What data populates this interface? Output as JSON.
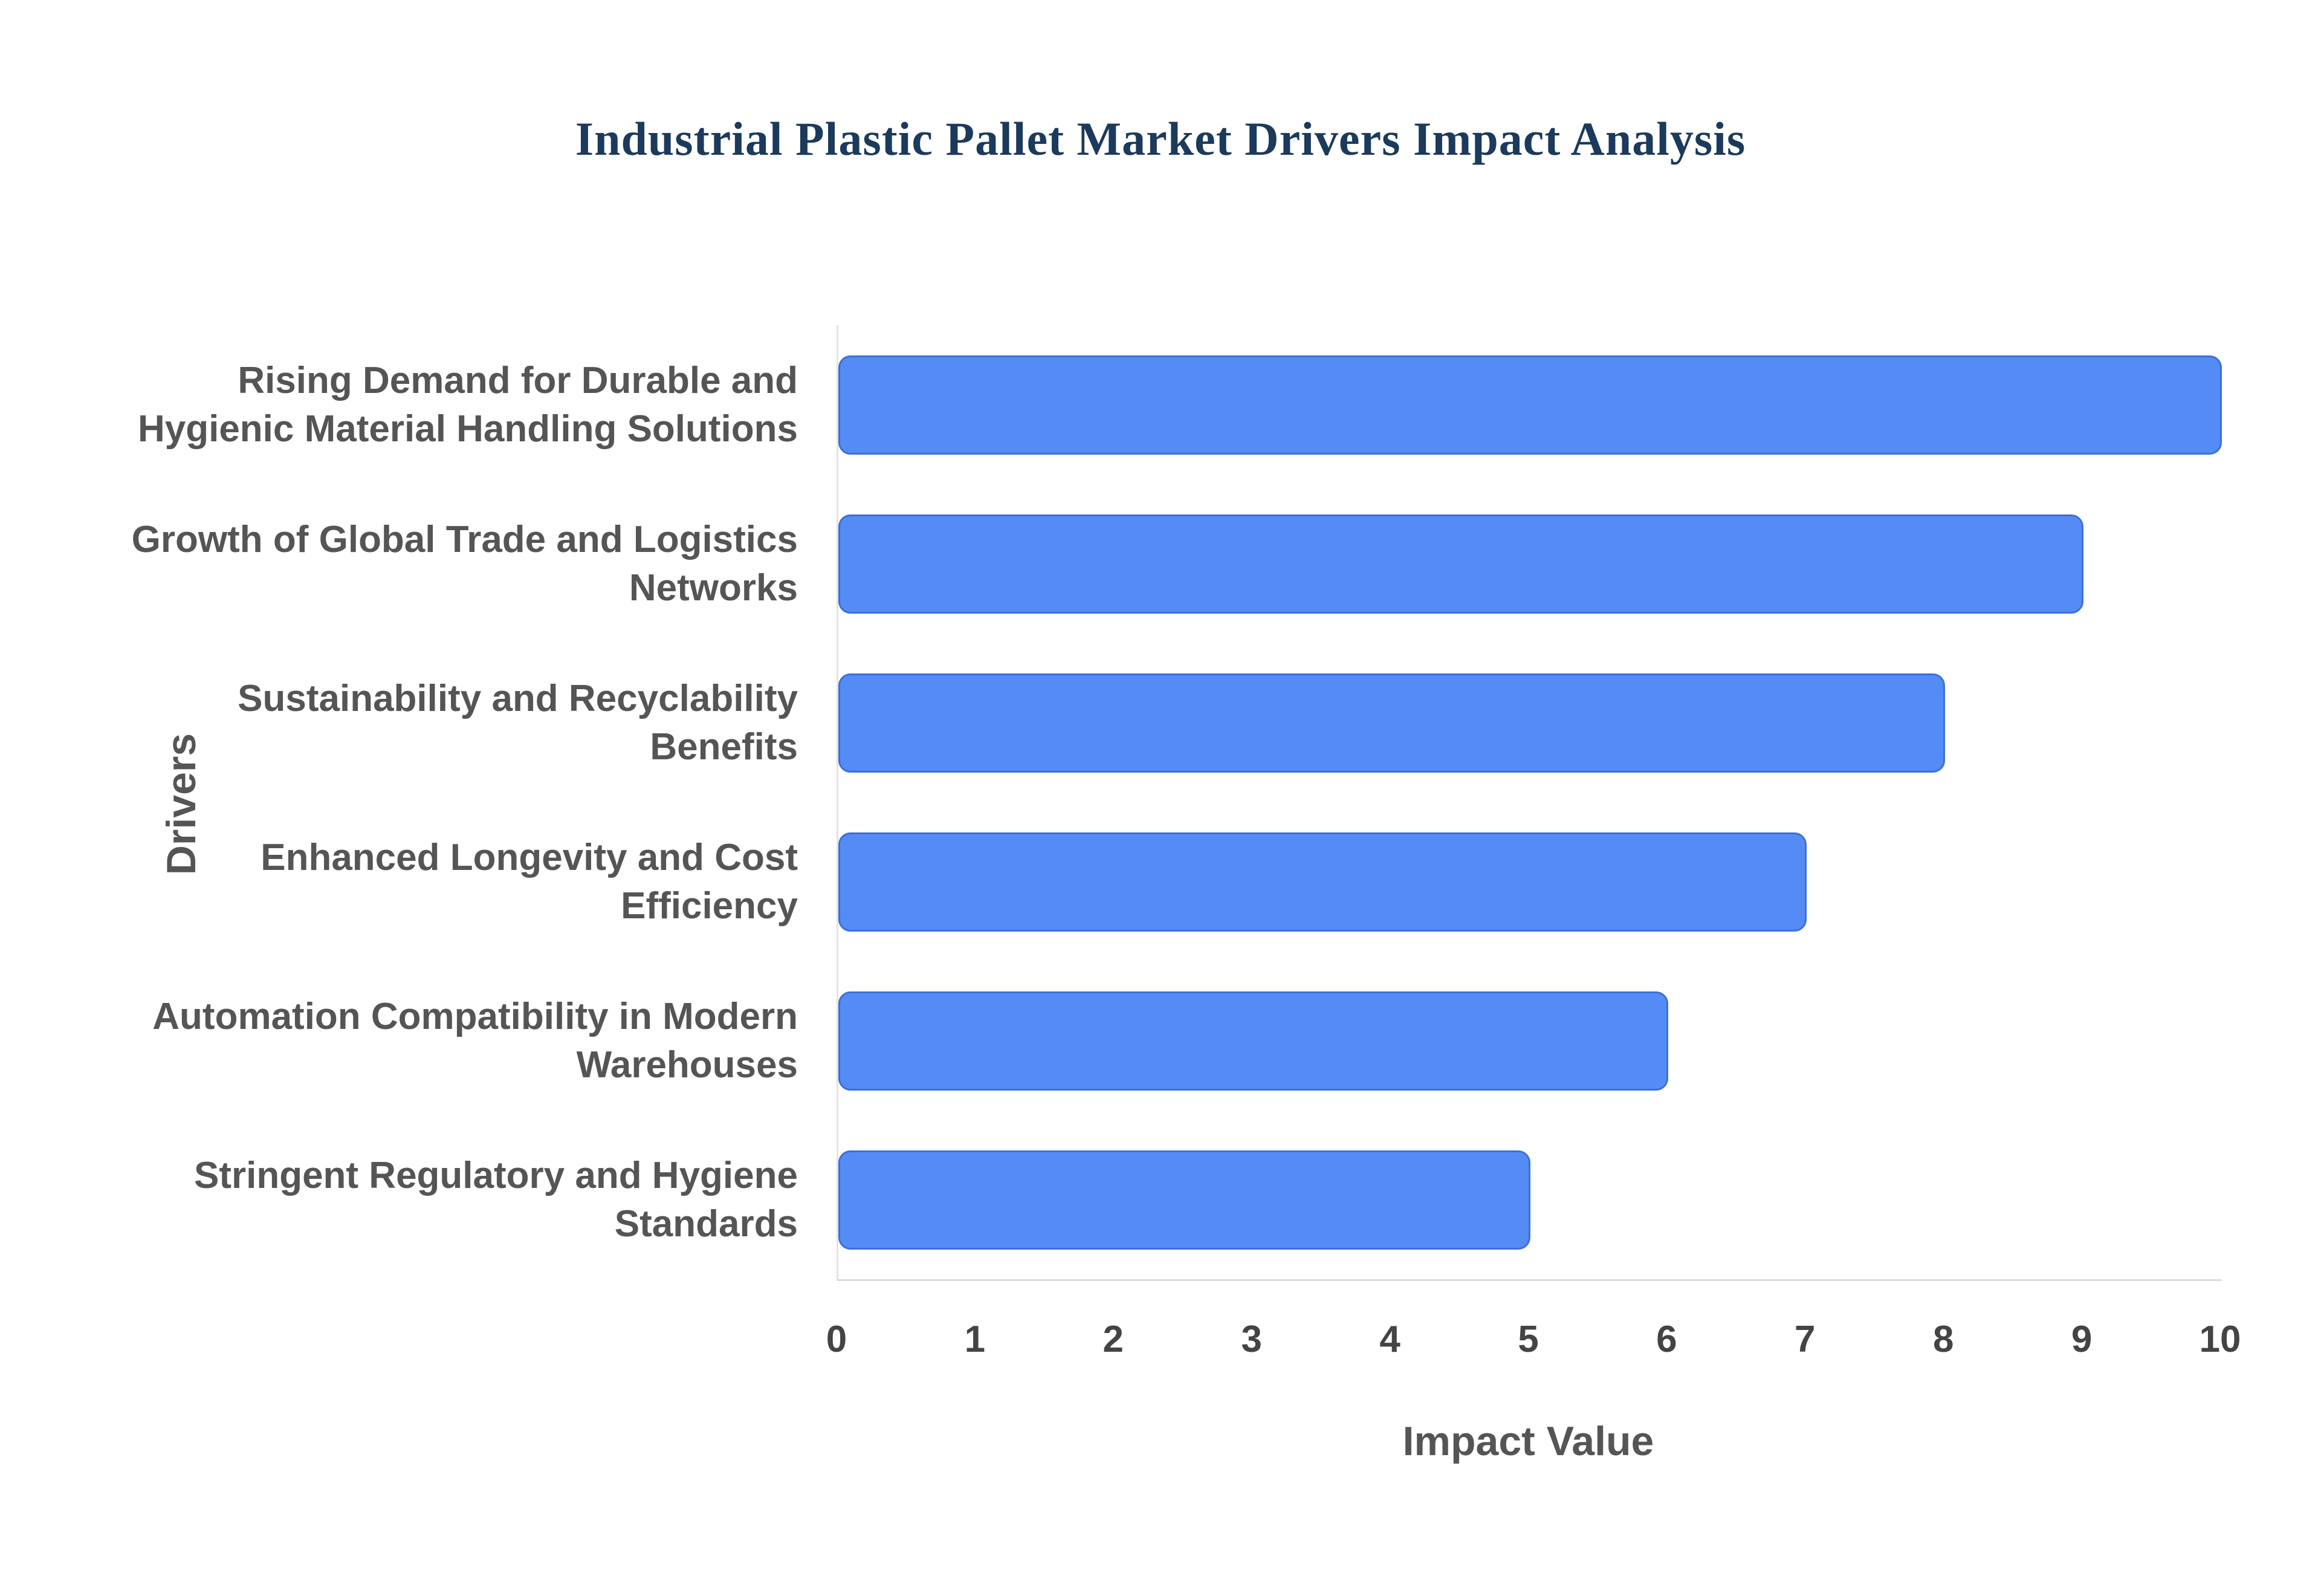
{
  "chart_data": {
    "type": "bar",
    "orientation": "horizontal",
    "title": "Industrial Plastic Pallet Market Drivers Impact Analysis",
    "xlabel": "Impact Value",
    "ylabel": "Drivers",
    "categories": [
      "Rising Demand for Durable and Hygienic Material Handling Solutions",
      "Growth of Global Trade and Logistics Networks",
      "Sustainability and Recyclability Benefits",
      "Enhanced Longevity and Cost Efficiency",
      "Automation Compatibility in Modern Warehouses",
      "Stringent Regulatory and Hygiene Standards"
    ],
    "values": [
      10,
      9,
      8,
      7,
      6,
      5
    ],
    "xlim": [
      0,
      10
    ],
    "xticks": [
      0,
      1,
      2,
      3,
      4,
      5,
      6,
      7,
      8,
      9,
      10
    ],
    "grid": false,
    "legend": false,
    "bar_color": "#548bf4",
    "bar_border_color": "#3e6fd9",
    "title_color": "#1b3a5c",
    "axis_label_color": "#555555",
    "tick_label_color": "#444444",
    "background_color": "#ffffff"
  }
}
